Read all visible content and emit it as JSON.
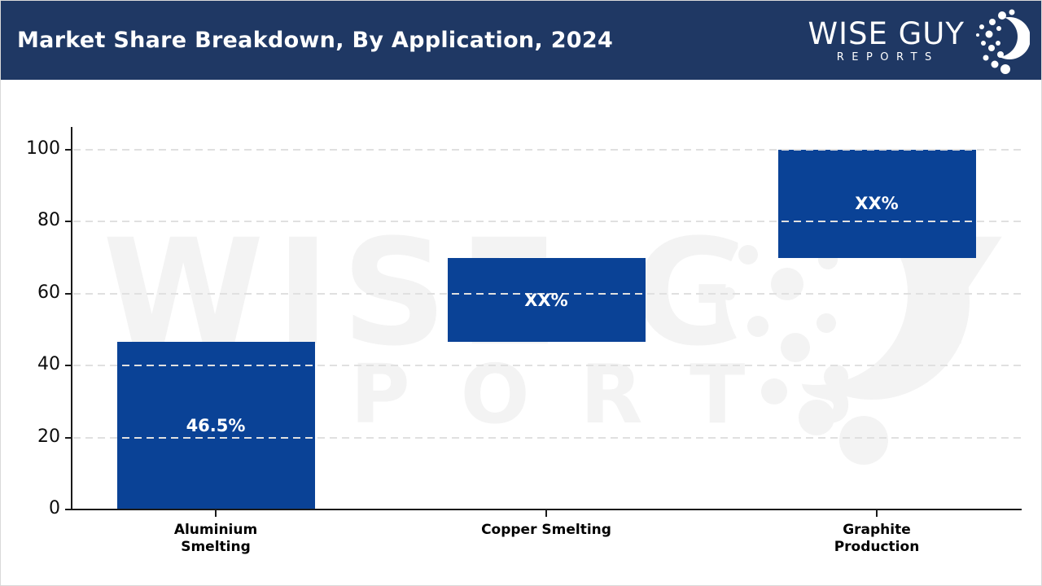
{
  "header": {
    "title": "Market Share Breakdown, By Application, 2024",
    "logo": {
      "line1": "WISE GUY",
      "line2": "REPORTS"
    }
  },
  "watermark": {
    "line1": "WISE GUY",
    "line2": "REPORTS"
  },
  "chart_data": {
    "type": "bar",
    "variant": "waterfall",
    "title": "Market Share Breakdown, By Application, 2024",
    "categories": [
      "Aluminium Smelting",
      "Copper Smelting",
      "Graphite Production"
    ],
    "series": [
      {
        "name": "Market Share",
        "segments": [
          {
            "category": "Aluminium Smelting",
            "start": 0,
            "end": 46.5,
            "label": "46.5%"
          },
          {
            "category": "Copper Smelting",
            "start": 46.5,
            "end": 70,
            "label": "XX%"
          },
          {
            "category": "Graphite Production",
            "start": 70,
            "end": 100,
            "label": "XX%"
          }
        ]
      }
    ],
    "xlabel": "",
    "ylabel": "",
    "ylim": [
      0,
      100
    ],
    "y_ticks": [
      0,
      20,
      40,
      60,
      80,
      100
    ],
    "grid": "horizontal-dashed",
    "legend": "none",
    "bar_color": "#0a4296",
    "bar_label_color": "#ffffff",
    "axis_color": "#1a1a1a",
    "gridline_color": "#e0e0e0"
  }
}
